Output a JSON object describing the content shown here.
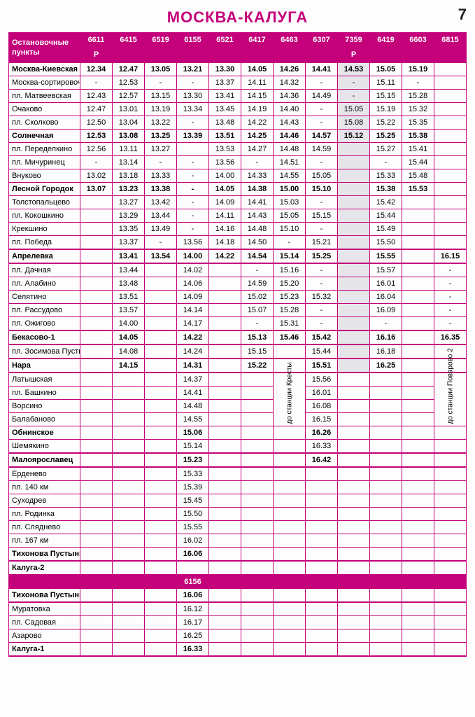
{
  "title": "МОСКВА-КАЛУГА",
  "page_number": "7",
  "header_label": "Остановочные пункты",
  "trains": [
    {
      "num": "6611",
      "sub": "Р"
    },
    {
      "num": "6415",
      "sub": ""
    },
    {
      "num": "6519",
      "sub": ""
    },
    {
      "num": "6155",
      "sub": ""
    },
    {
      "num": "6521",
      "sub": ""
    },
    {
      "num": "6417",
      "sub": ""
    },
    {
      "num": "6463",
      "sub": ""
    },
    {
      "num": "6307",
      "sub": ""
    },
    {
      "num": "7359",
      "sub": "Р"
    },
    {
      "num": "6419",
      "sub": ""
    },
    {
      "num": "6603",
      "sub": ""
    },
    {
      "num": "6815",
      "sub": ""
    }
  ],
  "rows": [
    {
      "name": "Москва-Киевская",
      "bold": true,
      "thickTop": true,
      "t": [
        "12.34",
        "12.47",
        "13.05",
        "13.21",
        "13.30",
        "14.05",
        "14.26",
        "14.41",
        "14.53",
        "15.05",
        "15.19",
        ""
      ],
      "shade": [
        8
      ]
    },
    {
      "name": "Москва-сортировочная",
      "t": [
        "-",
        "12.53",
        "-",
        "-",
        "13.37",
        "14.11",
        "14.32",
        "-",
        "-",
        "15.11",
        "-",
        ""
      ],
      "shade": [
        8
      ]
    },
    {
      "name": "пл. Матвеевская",
      "t": [
        "12.43",
        "12.57",
        "13.15",
        "13.30",
        "13.41",
        "14.15",
        "14.36",
        "14.49",
        "-",
        "15.15",
        "15.28",
        ""
      ],
      "shade": [
        8
      ]
    },
    {
      "name": "Очаково",
      "t": [
        "12.47",
        "13.01",
        "13.19",
        "13.34",
        "13.45",
        "14.19",
        "14.40",
        "-",
        "15.05",
        "15.19",
        "15.32",
        ""
      ],
      "shade": [
        8
      ]
    },
    {
      "name": "пл. Сколково",
      "t": [
        "12.50",
        "13.04",
        "13.22",
        "-",
        "13.48",
        "14.22",
        "14.43",
        "-",
        "15.08",
        "15.22",
        "15.35",
        ""
      ],
      "shade": [
        8
      ]
    },
    {
      "name": "Солнечная",
      "bold": true,
      "t": [
        "12.53",
        "13.08",
        "13.25",
        "13.39",
        "13.51",
        "14.25",
        "14.46",
        "14.57",
        "15.12",
        "15.25",
        "15.38",
        ""
      ],
      "shade": [
        8
      ]
    },
    {
      "name": "пл. Переделкино",
      "t": [
        "12.56",
        "13.11",
        "13.27",
        "",
        "13.53",
        "14.27",
        "14.48",
        "14.59",
        "",
        "15.27",
        "15.41",
        ""
      ],
      "shade": [
        8
      ]
    },
    {
      "name": "пл. Мичуринец",
      "t": [
        "-",
        "13.14",
        "-",
        "-",
        "13.56",
        "-",
        "14.51",
        "-",
        "",
        "-",
        "15.44",
        ""
      ],
      "shade": [
        8
      ]
    },
    {
      "name": "Внуково",
      "t": [
        "13.02",
        "13.18",
        "13.33",
        "-",
        "14.00",
        "14.33",
        "14.55",
        "15.05",
        "",
        "15.33",
        "15.48",
        ""
      ],
      "shade": [
        8
      ]
    },
    {
      "name": "Лесной Городок",
      "bold": true,
      "t": [
        "13.07",
        "13.23",
        "13.38",
        "-",
        "14.05",
        "14.38",
        "15.00",
        "15.10",
        "",
        "15.38",
        "15.53",
        ""
      ],
      "shade": [
        8
      ]
    },
    {
      "name": "Толстопальцево",
      "t": [
        "",
        "13.27",
        "13.42",
        "-",
        "14.09",
        "14.41",
        "15.03",
        "-",
        "",
        "15.42",
        "",
        ""
      ],
      "shade": [
        8
      ]
    },
    {
      "name": "пл. Кокошкино",
      "t": [
        "",
        "13.29",
        "13.44",
        "-",
        "14.11",
        "14.43",
        "15.05",
        "15.15",
        "",
        "15.44",
        "",
        ""
      ],
      "shade": [
        8
      ]
    },
    {
      "name": "Крекшино",
      "t": [
        "",
        "13.35",
        "13.49",
        "-",
        "14.16",
        "14.48",
        "15.10",
        "-",
        "",
        "15.49",
        "",
        ""
      ],
      "shade": [
        8
      ]
    },
    {
      "name": "пл. Победа",
      "t": [
        "",
        "13.37",
        "-",
        "13.56",
        "14.18",
        "14.50",
        "-",
        "15.21",
        "",
        "15.50",
        "",
        ""
      ],
      "shade": [
        8
      ]
    },
    {
      "name": "Апрелевка",
      "bold": true,
      "thickTop": true,
      "t": [
        "",
        "13.41",
        "13.54",
        "14.00",
        "14.22",
        "14.54",
        "15.14",
        "15.25",
        "",
        "15.55",
        "",
        "16.15"
      ],
      "shade": [
        8
      ]
    },
    {
      "name": "пл. Дачная",
      "thickTop": true,
      "t": [
        "",
        "13.44",
        "",
        "14.02",
        "",
        "-",
        "15.16",
        "-",
        "",
        "15.57",
        "",
        "-"
      ],
      "shade": [
        8
      ]
    },
    {
      "name": "пл. Алабино",
      "t": [
        "",
        "13.48",
        "",
        "14.06",
        "",
        "14.59",
        "15.20",
        "-",
        "",
        "16.01",
        "",
        "-"
      ],
      "shade": [
        8
      ]
    },
    {
      "name": "Селятино",
      "t": [
        "",
        "13.51",
        "",
        "14.09",
        "",
        "15.02",
        "15.23",
        "15.32",
        "",
        "16.04",
        "",
        "-"
      ],
      "shade": [
        8
      ]
    },
    {
      "name": "пл. Рассудово",
      "t": [
        "",
        "13.57",
        "",
        "14.14",
        "",
        "15.07",
        "15.28",
        "-",
        "",
        "16.09",
        "",
        "-"
      ],
      "shade": [
        8
      ]
    },
    {
      "name": "пл. Ожигово",
      "t": [
        "",
        "14.00",
        "",
        "14.17",
        "",
        "-",
        "15.31",
        "-",
        "",
        "-",
        "",
        "-"
      ],
      "shade": [
        8
      ]
    },
    {
      "name": "Бекасово-1",
      "bold": true,
      "thickTop": true,
      "t": [
        "",
        "14.05",
        "",
        "14.22",
        "",
        "15.13",
        "15.46",
        "15.42",
        "",
        "16.16",
        "",
        "16.35"
      ],
      "shade": [
        8
      ]
    },
    {
      "name": "пл. Зосимова Пустынь",
      "thickTop": true,
      "t": [
        "",
        "14.08",
        "",
        "14.24",
        "",
        "15.15",
        "",
        "15.44",
        "",
        "16.18",
        "",
        ""
      ],
      "shade": [
        8
      ]
    },
    {
      "name": "Нара",
      "bold": true,
      "thickTop": true,
      "thickBot": true,
      "t": [
        "",
        "14.15",
        "",
        "14.31",
        "",
        "15.22",
        "",
        "15.51",
        "",
        "16.25",
        "",
        ""
      ],
      "shade": [
        8
      ]
    },
    {
      "name": "Латышская",
      "t": [
        "",
        "",
        "",
        "14.37",
        "",
        "",
        "ROWSPAN:до станции Кресты:4",
        "15.56",
        "",
        "",
        "",
        "ROWSPAN:до станции Поварово 2:4"
      ]
    },
    {
      "name": "пл. Башкино",
      "t": [
        "",
        "",
        "",
        "14.41",
        "",
        "",
        "SKIP",
        "16.01",
        "",
        "",
        "",
        "SKIP"
      ]
    },
    {
      "name": "Ворсино",
      "t": [
        "",
        "",
        "",
        "14.48",
        "",
        "",
        "SKIP",
        "16.08",
        "",
        "",
        "",
        "SKIP"
      ]
    },
    {
      "name": "Балабаново",
      "t": [
        "",
        "",
        "",
        "14.55",
        "",
        "",
        "SKIP",
        "16.15",
        "",
        "",
        "",
        "SKIP"
      ]
    },
    {
      "name": "Обнинское",
      "bold": true,
      "t": [
        "",
        "",
        "",
        "15.06",
        "",
        "",
        "",
        "16.26",
        "",
        "",
        "",
        ""
      ]
    },
    {
      "name": "Шемякино",
      "t": [
        "",
        "",
        "",
        "15.14",
        "",
        "",
        "",
        "16.33",
        "",
        "",
        "",
        ""
      ]
    },
    {
      "name": "Малоярославец",
      "bold": true,
      "thickTop": true,
      "thickBot": true,
      "t": [
        "",
        "",
        "",
        "15.23",
        "",
        "",
        "",
        "16.42",
        "",
        "",
        "",
        ""
      ]
    },
    {
      "name": "Ерденево",
      "t": [
        "",
        "",
        "",
        "15.33",
        "",
        "",
        "",
        "",
        "",
        "",
        "",
        ""
      ]
    },
    {
      "name": "пл. 140 км",
      "t": [
        "",
        "",
        "",
        "15.39",
        "",
        "",
        "",
        "",
        "",
        "",
        "",
        ""
      ]
    },
    {
      "name": "Суходрев",
      "t": [
        "",
        "",
        "",
        "15.45",
        "",
        "",
        "",
        "",
        "",
        "",
        "",
        ""
      ]
    },
    {
      "name": "пл. Родинка",
      "t": [
        "",
        "",
        "",
        "15.50",
        "",
        "",
        "",
        "",
        "",
        "",
        "",
        ""
      ]
    },
    {
      "name": "пл. Сляднево",
      "t": [
        "",
        "",
        "",
        "15.55",
        "",
        "",
        "",
        "",
        "",
        "",
        "",
        ""
      ]
    },
    {
      "name": "пл. 167 км",
      "t": [
        "",
        "",
        "",
        "16.02",
        "",
        "",
        "",
        "",
        "",
        "",
        "",
        ""
      ]
    },
    {
      "name": "Тихонова Пустынь",
      "bold": true,
      "thickBot": true,
      "t": [
        "",
        "",
        "",
        "16.06",
        "",
        "",
        "",
        "",
        "",
        "",
        "",
        ""
      ]
    },
    {
      "name": "Калуга-2",
      "bold": true,
      "thickBot": true,
      "t": [
        "",
        "",
        "",
        "",
        "",
        "",
        "",
        "",
        "",
        "",
        "",
        ""
      ]
    },
    {
      "name": "",
      "hdr": true,
      "t": [
        "",
        "",
        "",
        "6156",
        "",
        "",
        "",
        "",
        "",
        "",
        "",
        ""
      ]
    },
    {
      "name": "Тихонова Пустынь",
      "bold": true,
      "thickBot": true,
      "t": [
        "",
        "",
        "",
        "16.06",
        "",
        "",
        "",
        "",
        "",
        "",
        "",
        ""
      ]
    },
    {
      "name": "Муратовка",
      "t": [
        "",
        "",
        "",
        "16.12",
        "",
        "",
        "",
        "",
        "",
        "",
        "",
        ""
      ]
    },
    {
      "name": "пл. Садовая",
      "t": [
        "",
        "",
        "",
        "16.17",
        "",
        "",
        "",
        "",
        "",
        "",
        "",
        ""
      ]
    },
    {
      "name": "Азарово",
      "t": [
        "",
        "",
        "",
        "16.25",
        "",
        "",
        "",
        "",
        "",
        "",
        "",
        ""
      ]
    },
    {
      "name": "Калуга-1",
      "bold": true,
      "thickBot": true,
      "t": [
        "",
        "",
        "",
        "16.33",
        "",
        "",
        "",
        "",
        "",
        "",
        "",
        ""
      ]
    }
  ]
}
